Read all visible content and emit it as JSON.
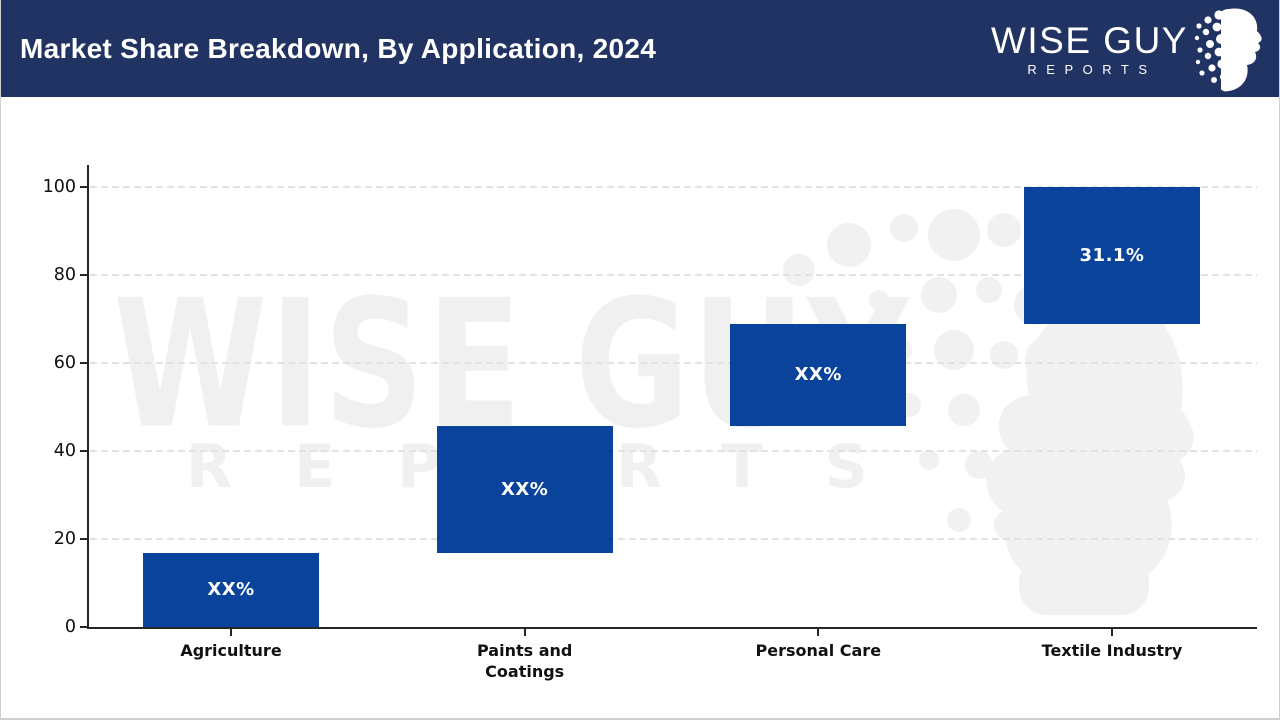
{
  "header": {
    "title": "Market Share Breakdown, By Application, 2024",
    "brand": {
      "line1": "WISE GUY",
      "line2": "REPORTS"
    },
    "bg_color": "#213363"
  },
  "watermark": {
    "line1": "WISE GUY",
    "line2": "REPORTS"
  },
  "chart_data": {
    "type": "bar",
    "subtype": "floating-waterfall",
    "title": "Market Share Breakdown, By Application, 2024",
    "categories": [
      "Agriculture",
      "Paints and Coatings",
      "Personal Care",
      "Textile Industry"
    ],
    "values": [
      16.9,
      28.8,
      23.2,
      31.1
    ],
    "segments": [
      {
        "category": "Agriculture",
        "label_lines": [
          "Agriculture"
        ],
        "start": 0,
        "end": 16.9,
        "value_label": "XX%"
      },
      {
        "category": "Paints and Coatings",
        "label_lines": [
          "Paints and",
          "Coatings"
        ],
        "start": 16.9,
        "end": 45.7,
        "value_label": "XX%"
      },
      {
        "category": "Personal Care",
        "label_lines": [
          "Personal Care"
        ],
        "start": 45.7,
        "end": 68.9,
        "value_label": "XX%"
      },
      {
        "category": "Textile Industry",
        "label_lines": [
          "Textile Industry"
        ],
        "start": 68.9,
        "end": 100,
        "value_label": "31.1%"
      }
    ],
    "yticks": [
      0,
      20,
      40,
      60,
      80,
      100
    ],
    "ylim": [
      0,
      105
    ],
    "xlabel": "",
    "ylabel": "",
    "legend": "none",
    "grid": "dashed-horizontal",
    "colors": {
      "bar": "#0a439c",
      "bar_label": "#ffffff",
      "axis": "#262626",
      "gridline": "#e2e2e2",
      "tick_label": "#111111",
      "watermark": "#f0f0f0"
    }
  }
}
